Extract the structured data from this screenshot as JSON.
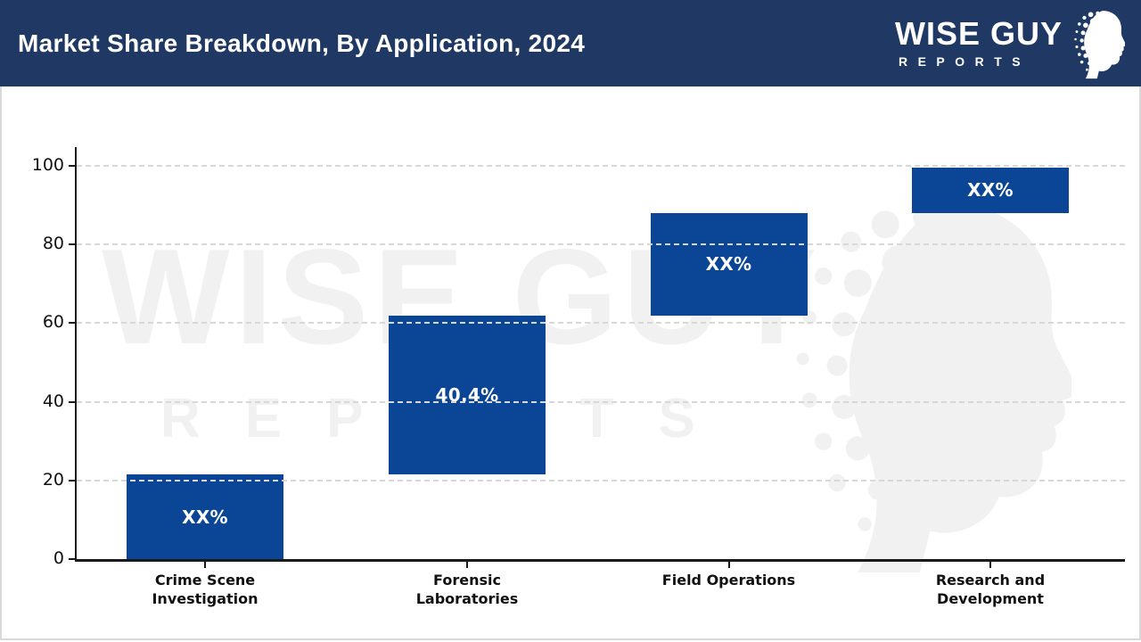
{
  "header": {
    "title": "Market Share Breakdown, By Application, 2024",
    "logo": {
      "primary": "WISE GUY",
      "secondary": "REPORTS"
    }
  },
  "watermark": {
    "primary": "WISE GUY",
    "secondary": "REPORTS"
  },
  "chart_data": {
    "type": "bar",
    "subtype": "waterfall",
    "title": "Market Share Breakdown, By Application, 2024",
    "xlabel": "",
    "ylabel": "",
    "ylim": [
      0,
      100
    ],
    "yticks": [
      0,
      20,
      40,
      60,
      80,
      100
    ],
    "grid": "horizontal-dashed",
    "legend": "none",
    "bar_color": "#0a4596",
    "value_label_color": "#ffffff",
    "categories": [
      "Crime Scene Investigation",
      "Forensic Laboratories",
      "Field Operations",
      "Research and Development"
    ],
    "segments": [
      {
        "category": "Crime Scene Investigation",
        "label_lines": [
          "Crime Scene",
          "Investigation"
        ],
        "start": 0,
        "end": 21.5,
        "value_label": "XX%"
      },
      {
        "category": "Forensic Laboratories",
        "label_lines": [
          "Forensic",
          "Laboratories"
        ],
        "start": 21.5,
        "end": 61.9,
        "value_label": "40.4%",
        "value": 40.4
      },
      {
        "category": "Field Operations",
        "label_lines": [
          "Field Operations"
        ],
        "start": 61.9,
        "end": 88.0,
        "value_label": "XX%"
      },
      {
        "category": "Research and Development",
        "label_lines": [
          "Research and",
          "Development"
        ],
        "start": 88.0,
        "end": 99.6,
        "value_label": "XX%"
      }
    ]
  },
  "colors": {
    "header_bg": "#1f3864",
    "bar": "#0a4596",
    "grid": "#d8d8d8",
    "axis": "#1a1a1a",
    "card_border": "#d9d9d9",
    "watermark": "#f1f1f1"
  }
}
